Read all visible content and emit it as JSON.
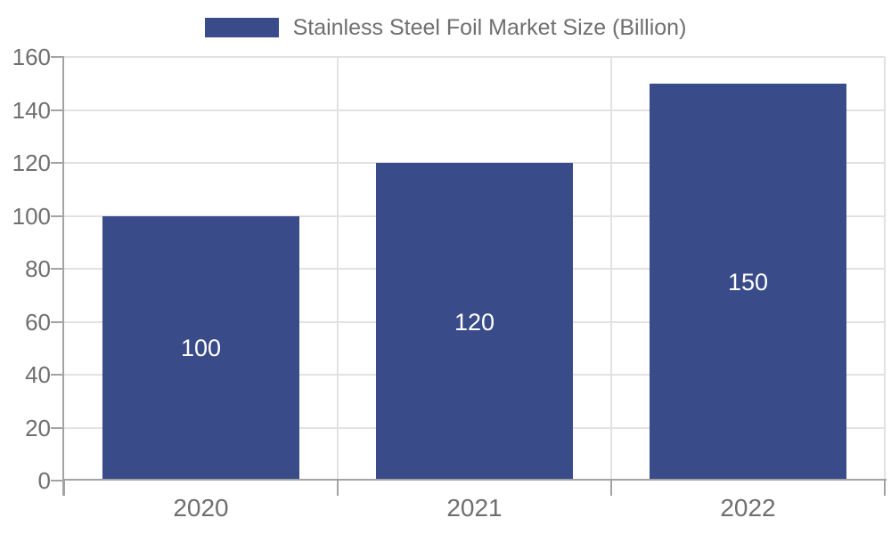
{
  "chart_data": {
    "type": "bar",
    "title": "Stainless Steel Foil Market Size (Billion)",
    "series": [
      {
        "name": "Stainless Steel Foil Market Size (Billion)",
        "values": [
          100,
          120,
          150
        ]
      }
    ],
    "categories": [
      "2020",
      "2021",
      "2022"
    ],
    "values": [
      100,
      120,
      150
    ],
    "data_labels": [
      "100",
      "120",
      "150"
    ],
    "data_label_position": "inside-center",
    "xlabel": "",
    "ylabel": "",
    "ylim": [
      0,
      160
    ],
    "yticks": [
      0,
      20,
      40,
      60,
      80,
      100,
      120,
      140,
      160
    ],
    "ytick_labels": [
      "0",
      "20",
      "40",
      "60",
      "80",
      "100",
      "120",
      "140",
      "160"
    ],
    "grid": true,
    "legend_position": "top-center",
    "bar_width_fraction": 0.72,
    "colors": {
      "bar": "#3a4b8a",
      "data_label": "#ffffff",
      "axis_line": "#a3a3a3",
      "gridline": "#e2e2e2",
      "tick_label": "#6f6f6f",
      "legend_text": "#6f6f6f",
      "background": "#ffffff"
    }
  }
}
